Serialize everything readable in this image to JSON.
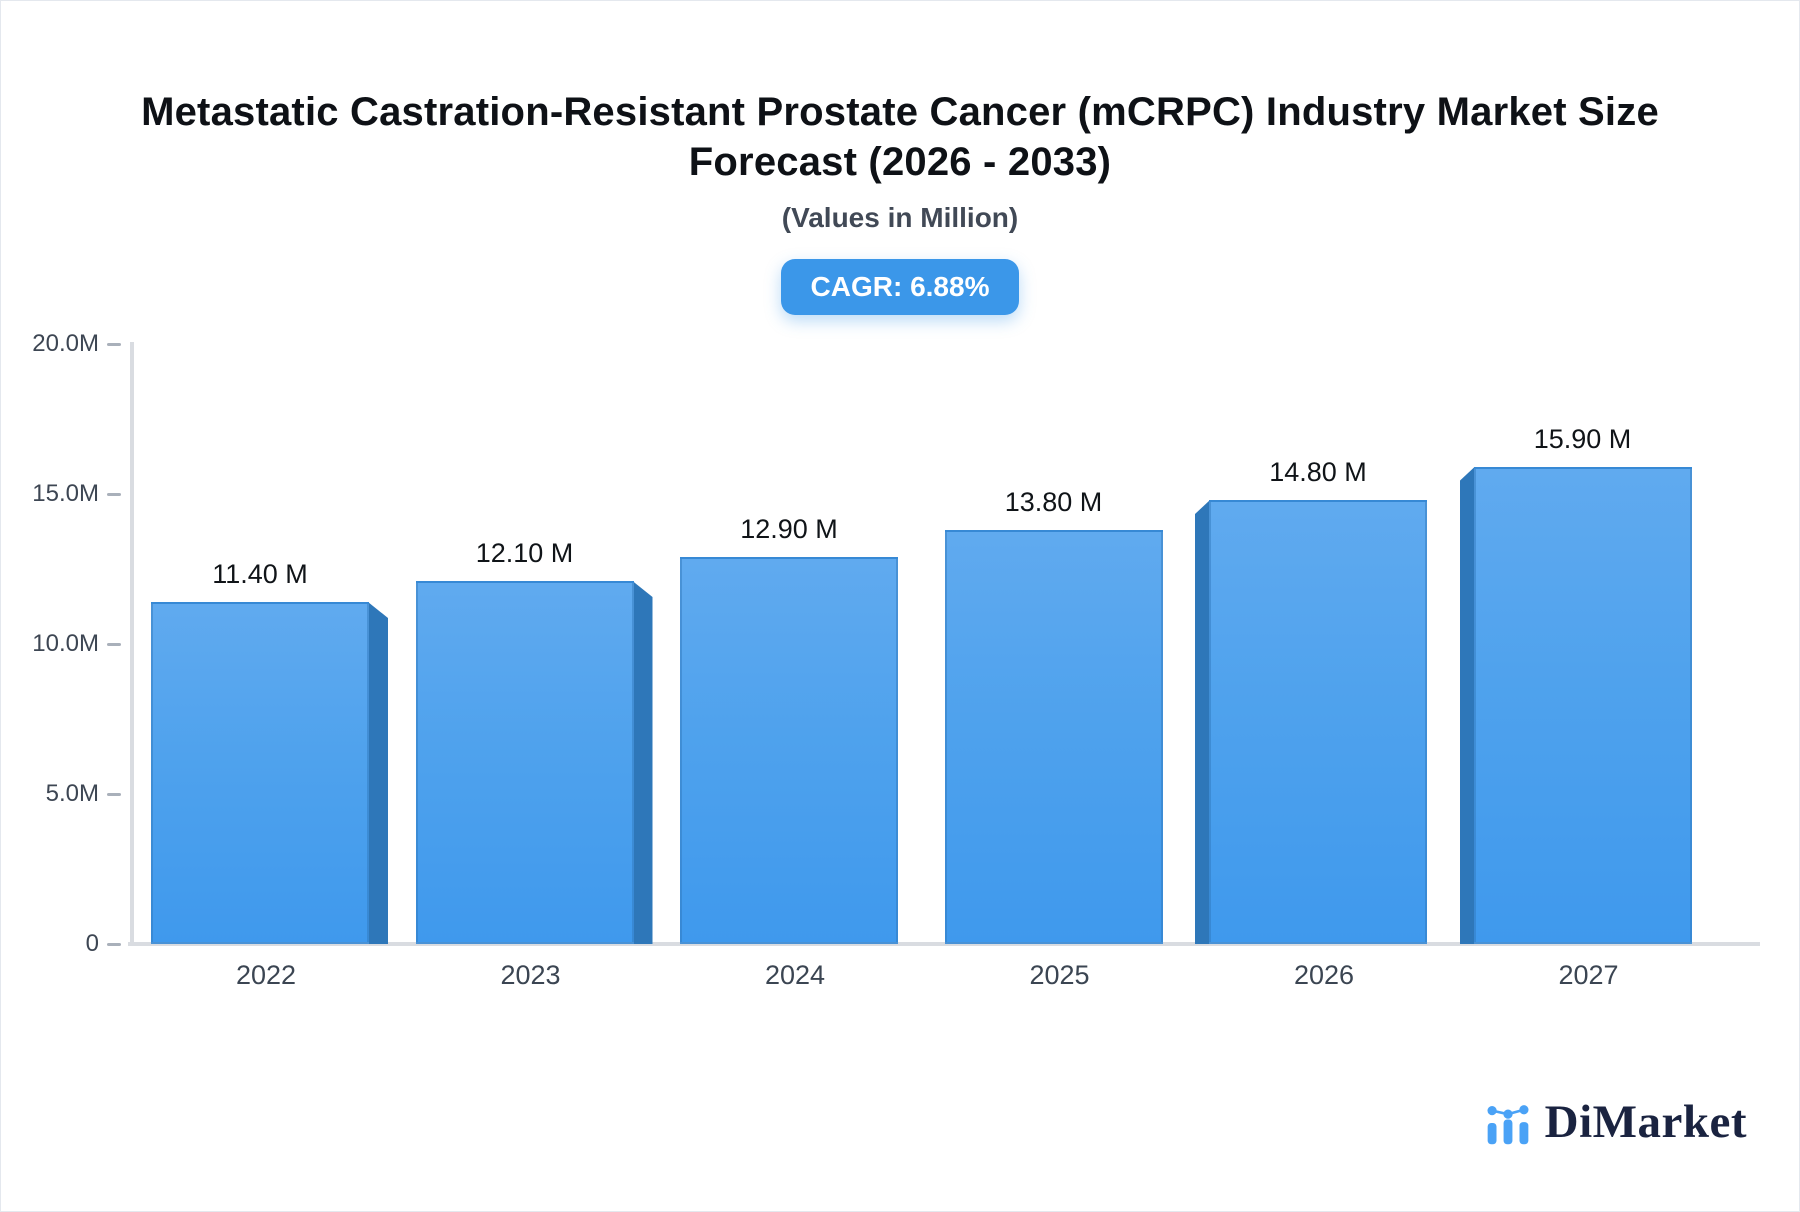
{
  "header": {
    "title_lines": [
      "Metastatic Castration-Resistant Prostate Cancer (mCRPC) Industry Market Size",
      "Forecast (2026 - 2033)"
    ],
    "subtitle": "(Values in Million)",
    "cagr_badge": "CAGR: 6.88%"
  },
  "brand": {
    "name": "DiMarket",
    "icon": "mini-bar-chart-with-dots"
  },
  "colors": {
    "bar_face_top": "#60aaef",
    "bar_face_bottom": "#3f99ed",
    "bar_side": "#2e77b9",
    "badge_bg": "#3b97e9",
    "axis_line": "#d9dce1",
    "tick_text": "#3d4653",
    "title_text": "#0e1116",
    "logo_text": "#1a2340",
    "logo_icon_blue": "#4aa2f6"
  },
  "chart_data": {
    "type": "bar",
    "title": "Metastatic Castration-Resistant Prostate Cancer (mCRPC) Industry Market Size Forecast (2026 - 2033)",
    "subtitle": "(Values in Million)",
    "categories": [
      "2022",
      "2023",
      "2024",
      "2025",
      "2026",
      "2027"
    ],
    "values": [
      11.4,
      12.1,
      12.9,
      13.8,
      14.8,
      15.9
    ],
    "value_labels": [
      "11.40 M",
      "12.10 M",
      "12.90 M",
      "13.80 M",
      "14.80 M",
      "15.90 M"
    ],
    "unit": "Million",
    "ylim": [
      0,
      20
    ],
    "yticks": [
      0,
      5,
      10,
      15,
      20
    ],
    "ytick_labels": [
      "0",
      "5.0M",
      "10.0M",
      "15.0M",
      "20.0M"
    ],
    "xlabel": "",
    "ylabel": "",
    "grid": false,
    "legend": null,
    "cagr_percent": 6.88,
    "bar_style": "3d-perspective-center-vanishing"
  }
}
